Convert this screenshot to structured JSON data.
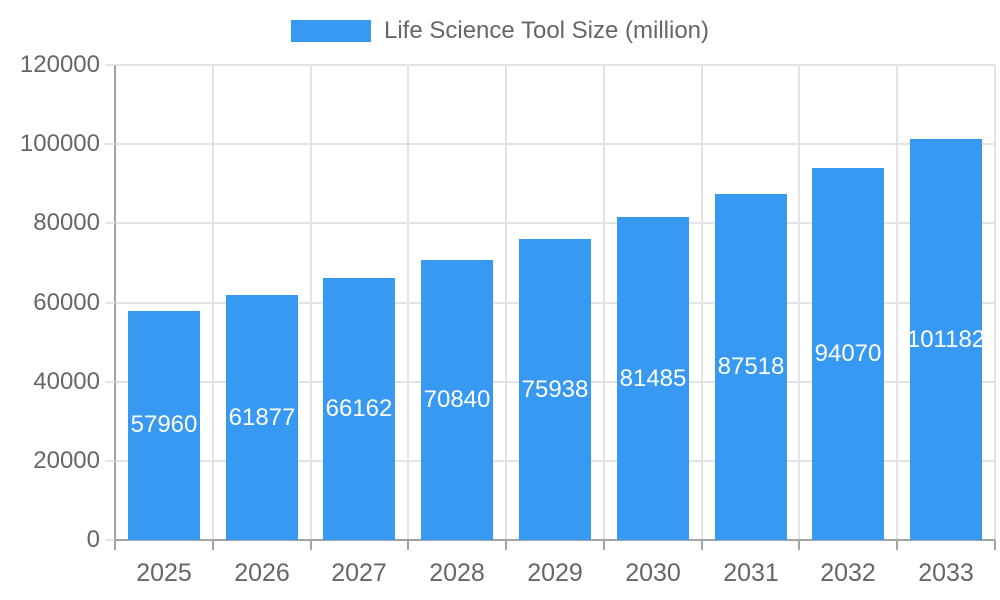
{
  "legend": {
    "label": "Life Science Tool Size (million)"
  },
  "colors": {
    "bar": "#3899F2",
    "bar_label_text": "#FFFFFF",
    "grid_line": "#E3E3E3",
    "axis_line": "#A3A3A3",
    "tick_label_text": "#666666",
    "legend_text": "#666666",
    "background": "#FFFFFF"
  },
  "chart_data": {
    "type": "bar",
    "categories": [
      "2025",
      "2026",
      "2027",
      "2028",
      "2029",
      "2030",
      "2031",
      "2032",
      "2033"
    ],
    "series": [
      {
        "name": "Life Science Tool Size (million)",
        "values": [
          57960,
          61877,
          66162,
          70840,
          75938,
          81485,
          87518,
          94070,
          101182
        ]
      }
    ],
    "title": "",
    "xlabel": "",
    "ylabel": "",
    "ylim": [
      0,
      120000
    ],
    "yticks": [
      0,
      20000,
      40000,
      60000,
      80000,
      100000,
      120000
    ],
    "grid": true,
    "legend_position": "top",
    "value_label_position": "inside-center"
  }
}
